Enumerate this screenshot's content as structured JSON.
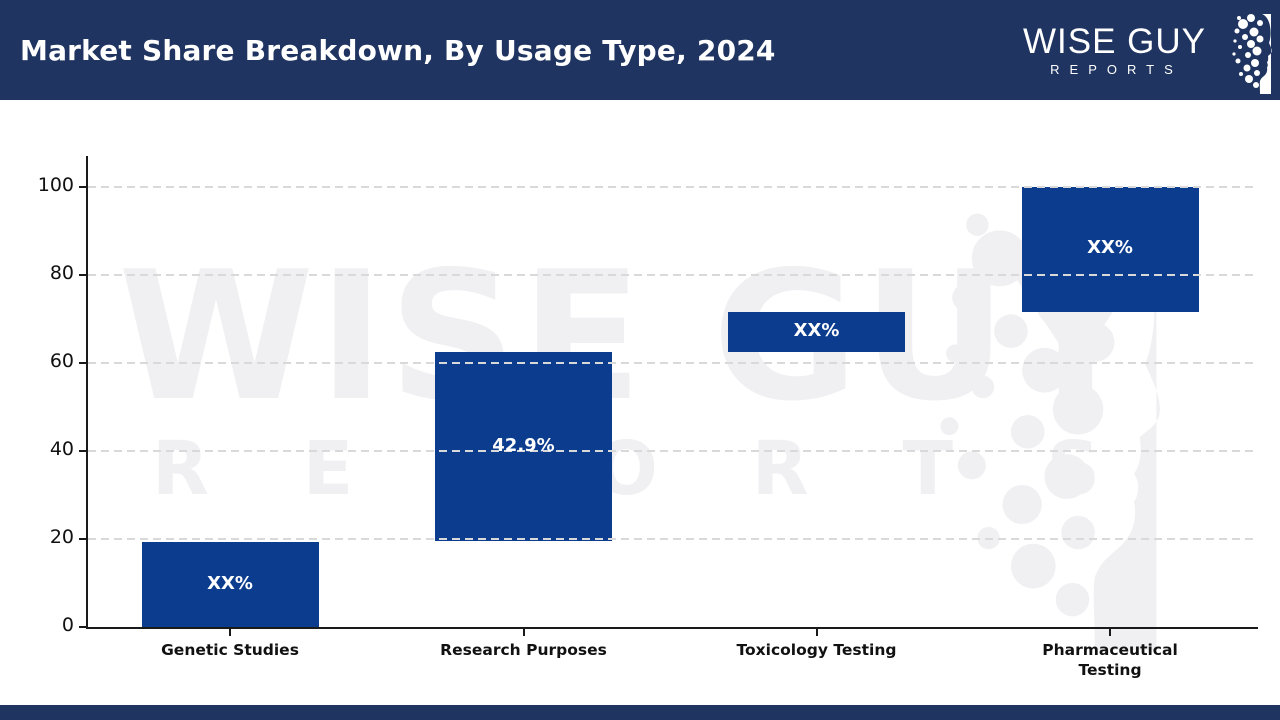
{
  "header": {
    "title": "Market Share Breakdown, By Usage Type, 2024",
    "logo": {
      "primary": "WISE GUY",
      "secondary": "REPORTS"
    }
  },
  "watermark": {
    "primary": "WISE GUY",
    "secondary": "R E P O R T S"
  },
  "chart_data": {
    "type": "bar",
    "subtype": "waterfall",
    "title": "Market Share Breakdown, By Usage Type, 2024",
    "categories": [
      "Genetic Studies",
      "Research Purposes",
      "Toxicology Testing",
      "Pharmaceutical\nTesting"
    ],
    "series": [
      {
        "category": "Genetic Studies",
        "start": 0,
        "end": 19.3,
        "label": "XX%"
      },
      {
        "category": "Research Purposes",
        "start": 19.5,
        "end": 62.4,
        "label": "42.9%"
      },
      {
        "category": "Toxicology Testing",
        "start": 62.4,
        "end": 71.6,
        "label": "XX%"
      },
      {
        "category": "Pharmaceutical Testing",
        "start": 71.6,
        "end": 100,
        "label": "XX%"
      }
    ],
    "xlabel": "",
    "ylabel": "",
    "yticks": [
      0,
      20,
      40,
      60,
      80,
      100
    ],
    "ylim": [
      0,
      107
    ],
    "grid": "horizontal-dashed",
    "legend": "none",
    "bar_color": "#0c3c8e",
    "bar_label_color": "#ffffff"
  },
  "colors": {
    "header_bg": "#1f3460",
    "footer_bg": "#1f3460",
    "background": "#ffffff",
    "grid": "#d9d9d9",
    "axis": "#1a1a1a",
    "tick_text": "#111111",
    "watermark": "#f0f0f3",
    "bar": "#0c3c8e"
  }
}
